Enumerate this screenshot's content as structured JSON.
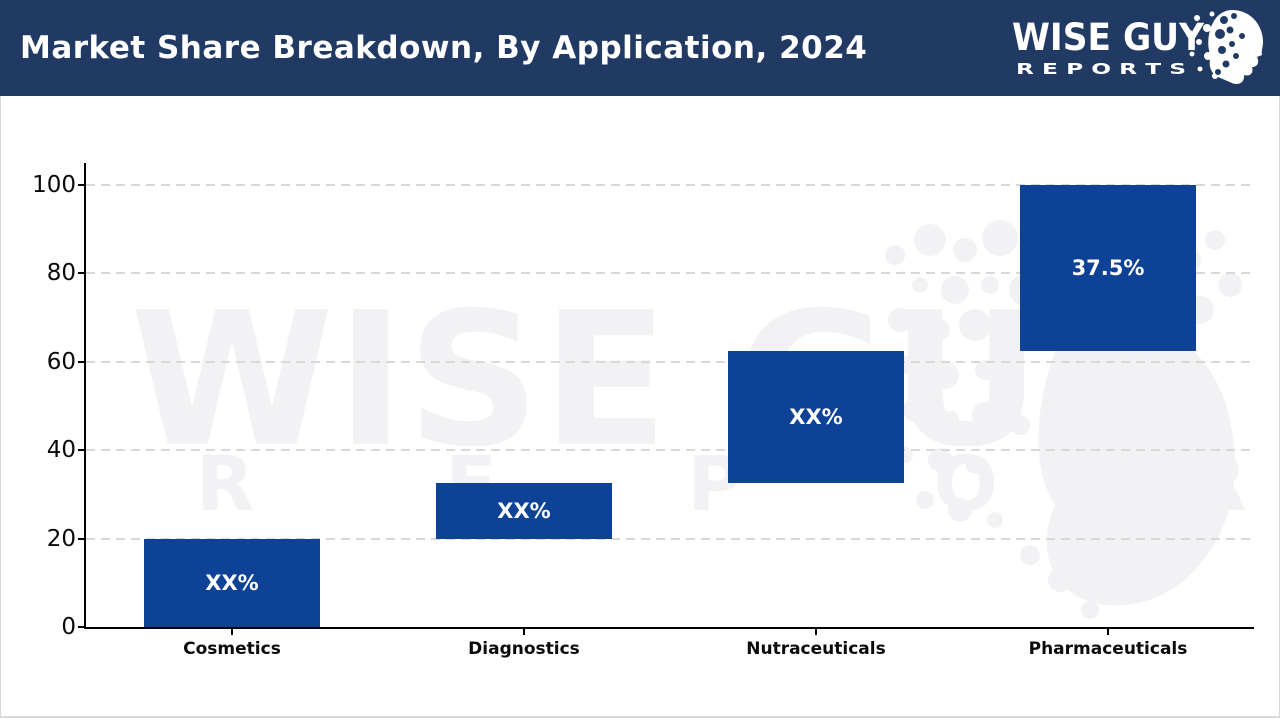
{
  "header": {
    "title": "Market Share Breakdown, By Application, 2024",
    "logo": {
      "line1": "WISE GUY",
      "line2": "R E P O R T S"
    }
  },
  "watermark": {
    "line1": "WISE GUY",
    "line2": "R E P O R T S"
  },
  "colors": {
    "header_bg": "#213A64",
    "header_text": "#FFFFFF",
    "bar_fill": "#0D4296",
    "bar_label": "#FFFFFF",
    "grid_line": "#D8D8D8",
    "axis_line": "#000000",
    "tick_label": "#0A0A0A",
    "watermark_gray": "#F2F2F4",
    "edge_line": "#D9D9D9"
  },
  "chart_data": {
    "type": "bar",
    "variant": "waterfall",
    "title": "Market Share Breakdown, By Application, 2024",
    "categories": [
      "Cosmetics",
      "Diagnostics",
      "Nutraceuticals",
      "Pharmaceuticals"
    ],
    "bars": [
      {
        "category": "Cosmetics",
        "start": 0,
        "end": 20,
        "label": "XX%"
      },
      {
        "category": "Diagnostics",
        "start": 20,
        "end": 32.5,
        "label": "XX%"
      },
      {
        "category": "Nutraceuticals",
        "start": 32.5,
        "end": 62.5,
        "label": "XX%"
      },
      {
        "category": "Pharmaceuticals",
        "start": 62.5,
        "end": 100,
        "label": "37.5%"
      }
    ],
    "yticks": [
      0,
      20,
      40,
      60,
      80,
      100
    ],
    "ylim": [
      0,
      105
    ],
    "xlabel": "",
    "ylabel": "",
    "grid": "horizontal-dashed",
    "legend_position": "none"
  }
}
